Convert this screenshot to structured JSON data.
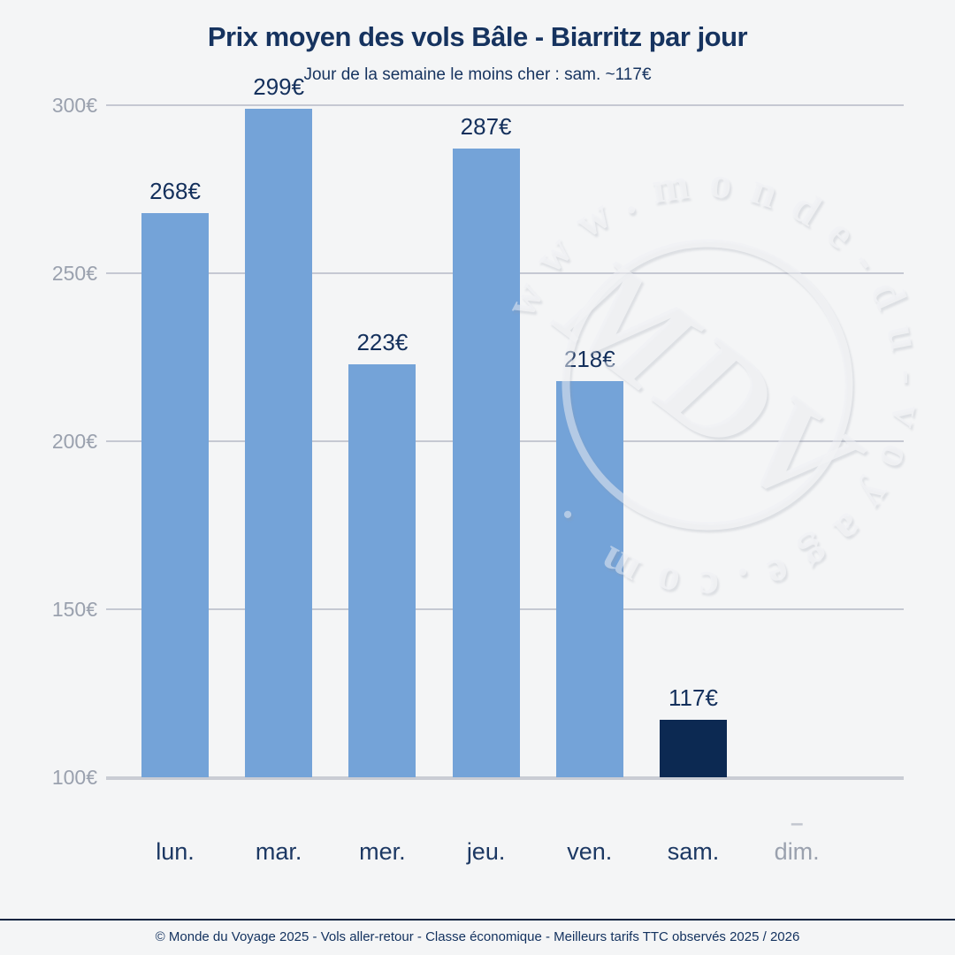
{
  "title": "Prix moyen des vols Bâle - Biarritz par jour",
  "subtitle": "Jour de la semaine le moins cher : sam. ~117€",
  "footer": "© Monde du Voyage 2025 - Vols aller-retour - Classe économique - Meilleurs tarifs TTC observés 2025 / 2026",
  "watermark": {
    "circle_text": "www.monde-du-voyage.com .",
    "initials": "MDV"
  },
  "colors": {
    "background": "#f4f5f6",
    "bar_blue": "#74a3d8",
    "bar_highlight_navy": "#0c2952",
    "text_navy": "#16335f",
    "axis_gray": "#9aa1ae",
    "gridline_gray": "#c5c8d2",
    "footer_line_navy": "#0e2440"
  },
  "chart_data": {
    "type": "bar",
    "title": "Prix moyen des vols Bâle - Biarritz par jour",
    "subtitle": "Jour de la semaine le moins cher : sam. ~117€",
    "categories": [
      "lun.",
      "mar.",
      "mer.",
      "jeu.",
      "ven.",
      "sam.",
      "dim."
    ],
    "values": [
      268,
      299,
      223,
      287,
      218,
      117,
      null
    ],
    "value_labels": [
      "268€",
      "299€",
      "223€",
      "287€",
      "218€",
      "117€",
      ""
    ],
    "missing_marker": "–",
    "unit": "€",
    "ylim": [
      100,
      300
    ],
    "yticks": [
      300,
      250,
      200,
      150,
      100
    ],
    "ytick_labels": [
      "300€",
      "250€",
      "200€",
      "150€",
      "100€"
    ],
    "highlight_index": 5,
    "missing_index": 6,
    "grid": "horizontal-only",
    "legend": "none",
    "annotations": "cheapest day highlighted in navy: sam. 117€; dim. has no data"
  }
}
